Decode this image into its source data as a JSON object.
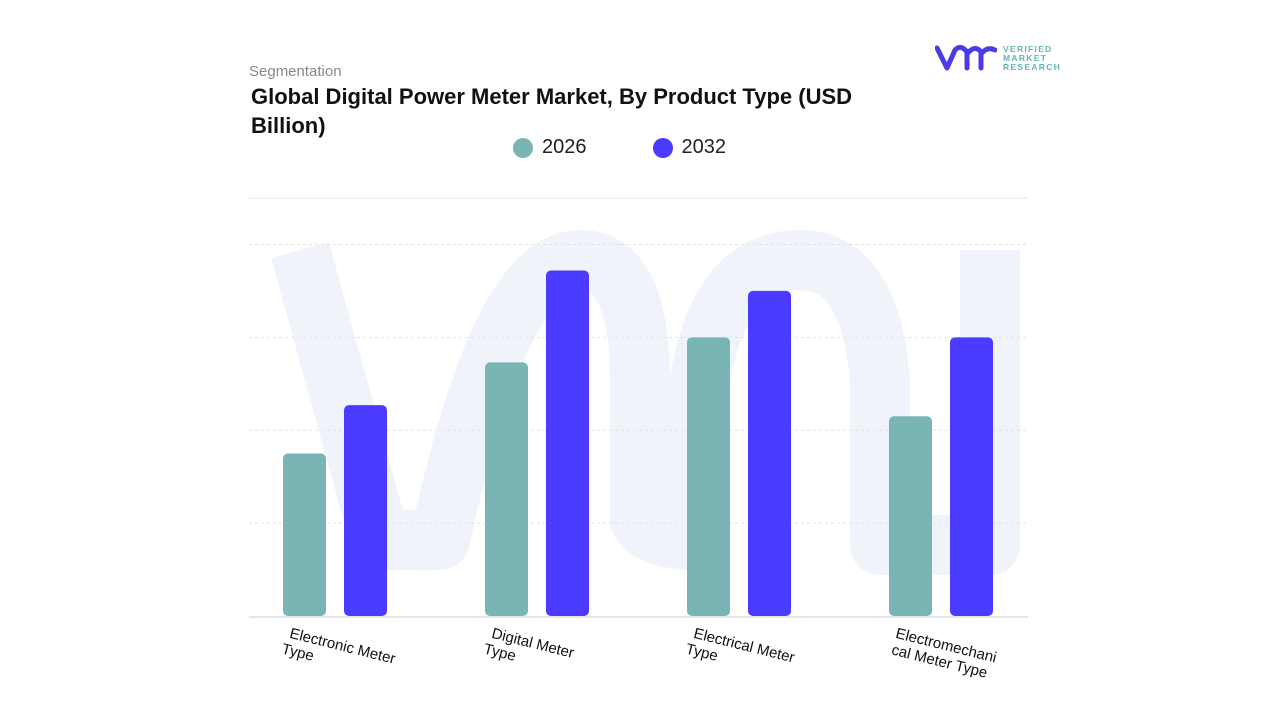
{
  "header": {
    "segment_label": "Segmentation",
    "title": "Global Digital Power Meter Market, By Product Type (USD Billion)"
  },
  "logo": {
    "text_lines": [
      "VERIFIED",
      "MARKET",
      "RESEARCH"
    ],
    "brand_color": "#4b3ae8",
    "text_color": "#5fb7b0"
  },
  "chart_data": {
    "type": "bar",
    "title": "Global Digital Power Meter Market, By Product Type (USD Billion)",
    "categories": [
      "Electronic Meter Type",
      "Digital Meter Type",
      "Electrical Meter Type",
      "Electromechanical Meter Type"
    ],
    "category_labels_display": [
      [
        "Electronic Meter",
        "Type"
      ],
      [
        "Digital Meter",
        "Type"
      ],
      [
        "Electrical Meter",
        "Type"
      ],
      [
        "Electromechani",
        "cal Meter Type"
      ]
    ],
    "series": [
      {
        "name": "2026",
        "color": "#7ab5b6",
        "values": [
          1.75,
          2.73,
          3.0,
          2.15
        ]
      },
      {
        "name": "2032",
        "color": "#4b3aff",
        "values": [
          2.27,
          3.72,
          3.5,
          3.0
        ]
      }
    ],
    "ylim": [
      0,
      4.5
    ],
    "grid": true,
    "legend_position": "top",
    "y_tick_labels_shown": false
  }
}
